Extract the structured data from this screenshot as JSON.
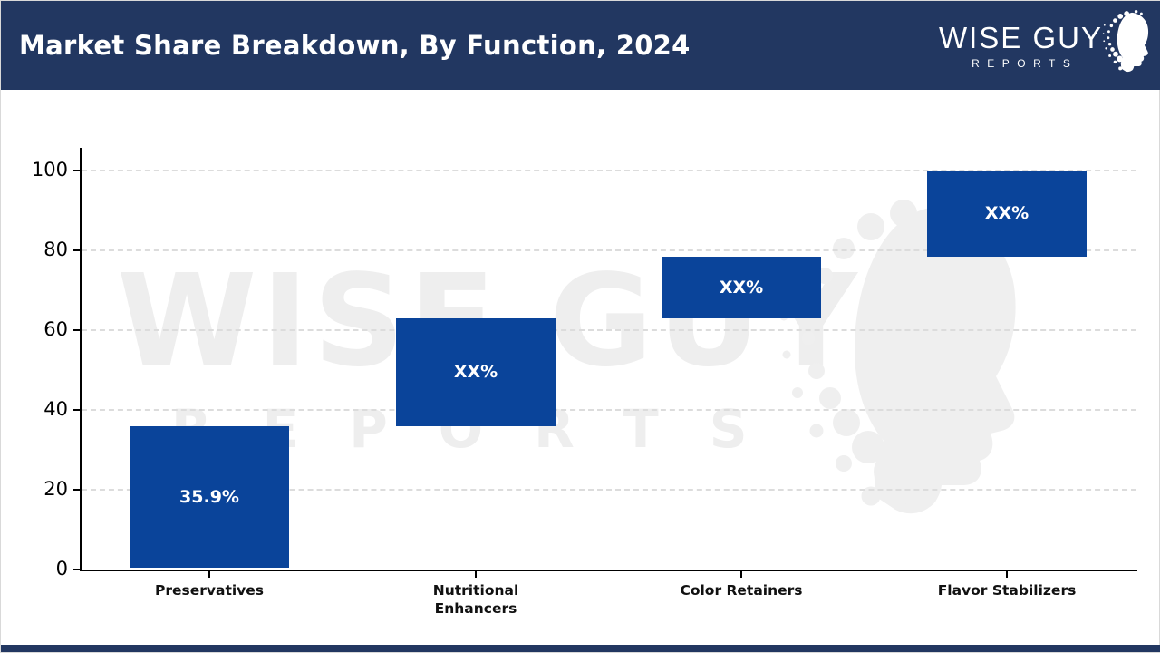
{
  "header": {
    "title": "Market Share Breakdown, By Function, 2024",
    "logo_line1": "WISE GUY",
    "logo_line2": "REPORTS"
  },
  "watermark": {
    "line1": "WISE GUY",
    "line2": "REPORTS"
  },
  "chart_data": {
    "type": "bar",
    "variant": "waterfall",
    "title": "Market Share Breakdown, By Function, 2024",
    "categories": [
      "Preservatives",
      "Nutritional Enhancers",
      "Color Retainers",
      "Flavor Stabilizers"
    ],
    "categories_display": [
      [
        "Preservatives"
      ],
      [
        "Nutritional",
        "Enhancers"
      ],
      [
        "Color Retainers"
      ],
      [
        "Flavor Stabilizers"
      ]
    ],
    "segments": [
      {
        "category": "Preservatives",
        "start": 0,
        "end": 35.9,
        "label": "35.9%"
      },
      {
        "category": "Nutritional Enhancers",
        "start": 35.9,
        "end": 63,
        "label": "XX%"
      },
      {
        "category": "Color Retainers",
        "start": 63,
        "end": 78.5,
        "label": "XX%"
      },
      {
        "category": "Flavor Stabilizers",
        "start": 78.5,
        "end": 100,
        "label": "XX%"
      }
    ],
    "xlabel": "",
    "ylabel": "",
    "ylim": [
      0,
      100
    ],
    "yticks": [
      0,
      20,
      40,
      60,
      80,
      100
    ],
    "grid": {
      "axis": "y",
      "style": "dashed",
      "color": "#dcdcdc"
    },
    "legend": "none",
    "bar_color": "#0a449a",
    "bar_label_color": "#ffffff",
    "background": "#ffffff",
    "header_color": "#223761"
  }
}
